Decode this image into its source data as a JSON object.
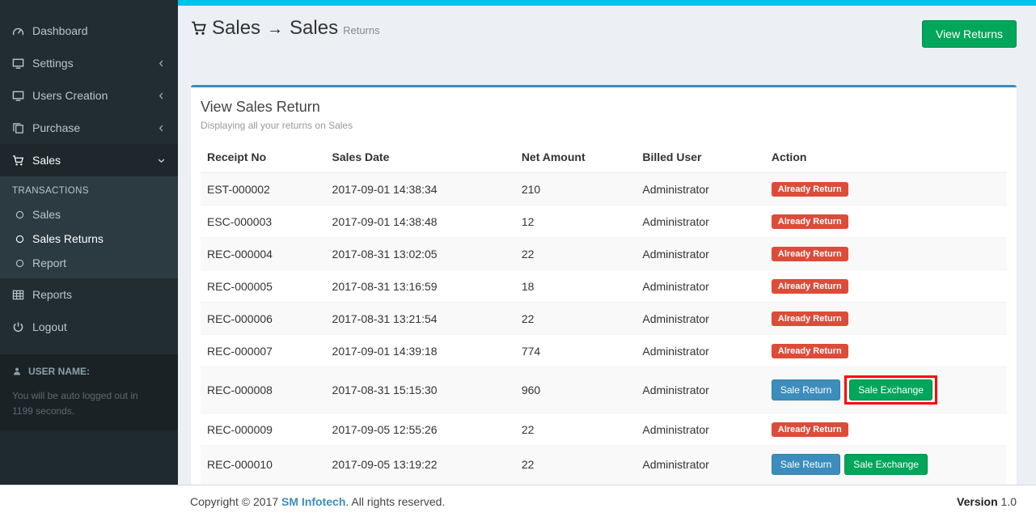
{
  "colors": {
    "topbar": "#00c0ef",
    "green": "#00a65a",
    "red": "#dd4b39",
    "blue": "#3c8dbc",
    "annotation": "#ff0000"
  },
  "sidebar": {
    "menu": [
      {
        "label": "Dashboard"
      },
      {
        "label": "Settings"
      },
      {
        "label": "Users Creation"
      },
      {
        "label": "Purchase"
      },
      {
        "label": "Sales"
      }
    ],
    "section_label": "TRANSACTIONS",
    "submenu": [
      {
        "label": "Sales"
      },
      {
        "label": "Sales Returns"
      },
      {
        "label": "Report"
      }
    ],
    "menu_bottom": [
      {
        "label": "Reports"
      },
      {
        "label": "Logout"
      }
    ],
    "user_label": "USER NAME:",
    "logout_notice": "You will be auto logged out in 1199 seconds."
  },
  "header": {
    "title_primary": "Sales",
    "arrow": "→",
    "title_secondary": "Sales",
    "title_sub": "Returns",
    "view_returns_button": "View Returns"
  },
  "card": {
    "title": "View Sales Return",
    "subtitle": "Displaying all your returns on Sales",
    "table": {
      "columns": [
        "Receipt No",
        "Sales Date",
        "Net Amount",
        "Billed User",
        "Action"
      ],
      "rows": [
        {
          "receipt": "EST-000002",
          "date": "2017-09-01 14:38:34",
          "amount": "210",
          "user": "Administrator",
          "actions": [
            "already_return"
          ],
          "highlight_exchange": false
        },
        {
          "receipt": "ESC-000003",
          "date": "2017-09-01 14:38:48",
          "amount": "12",
          "user": "Administrator",
          "actions": [
            "already_return"
          ],
          "highlight_exchange": false
        },
        {
          "receipt": "REC-000004",
          "date": "2017-08-31 13:02:05",
          "amount": "22",
          "user": "Administrator",
          "actions": [
            "already_return"
          ],
          "highlight_exchange": false
        },
        {
          "receipt": "REC-000005",
          "date": "2017-08-31 13:16:59",
          "amount": "18",
          "user": "Administrator",
          "actions": [
            "already_return"
          ],
          "highlight_exchange": false
        },
        {
          "receipt": "REC-000006",
          "date": "2017-08-31 13:21:54",
          "amount": "22",
          "user": "Administrator",
          "actions": [
            "already_return"
          ],
          "highlight_exchange": false
        },
        {
          "receipt": "REC-000007",
          "date": "2017-09-01 14:39:18",
          "amount": "774",
          "user": "Administrator",
          "actions": [
            "already_return"
          ],
          "highlight_exchange": false
        },
        {
          "receipt": "REC-000008",
          "date": "2017-08-31 15:15:30",
          "amount": "960",
          "user": "Administrator",
          "actions": [
            "sale_return",
            "sale_exchange"
          ],
          "highlight_exchange": true
        },
        {
          "receipt": "REC-000009",
          "date": "2017-09-05 12:55:26",
          "amount": "22",
          "user": "Administrator",
          "actions": [
            "already_return"
          ],
          "highlight_exchange": false
        },
        {
          "receipt": "REC-000010",
          "date": "2017-09-05 13:19:22",
          "amount": "22",
          "user": "Administrator",
          "actions": [
            "sale_return",
            "sale_exchange"
          ],
          "highlight_exchange": false
        }
      ]
    }
  },
  "labels": {
    "already_return": "Already Return",
    "sale_return": "Sale Return",
    "sale_exchange": "Sale Exchange"
  },
  "footer": {
    "copyright_prefix": "Copyright © 2017 ",
    "company": "SM Infotech",
    "copyright_suffix": ". All rights reserved.",
    "version_label": "Version",
    "version_value": "1.0"
  }
}
